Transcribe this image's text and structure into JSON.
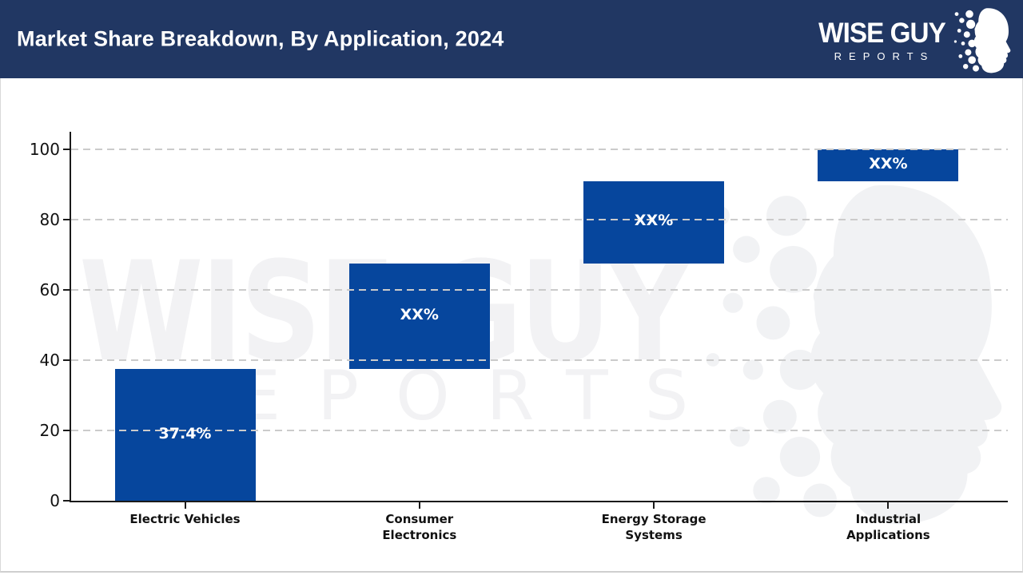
{
  "header": {
    "title": "Market Share Breakdown, By Application, 2024",
    "bg_color": "#213763",
    "logo": {
      "line1": "WISE GUY",
      "line2": "REPORTS"
    }
  },
  "watermark": {
    "line1": "WISE GUY",
    "line2": "REPORTS"
  },
  "colors": {
    "bar": "#06469d",
    "header_bg": "#213763",
    "axis": "#1a1a1a",
    "gridline": "#cbcbcb",
    "watermark": "#f2f2f4",
    "bar_label_text": "#ffffff"
  },
  "chart_data": {
    "type": "bar",
    "subtype": "floating-segment (waterfall-style market share)",
    "title": "Market Share Breakdown, By Application, 2024",
    "categories": [
      [
        "Electric Vehicles"
      ],
      [
        "Consumer",
        "Electronics"
      ],
      [
        "Energy Storage",
        "Systems"
      ],
      [
        "Industrial",
        "Applications"
      ]
    ],
    "series": [
      {
        "name": "Market share segment (from, to)",
        "ranges": [
          [
            0,
            37.4
          ],
          [
            37.4,
            67.5
          ],
          [
            67.5,
            91
          ],
          [
            91,
            100
          ]
        ]
      }
    ],
    "bar_labels": [
      "37.4%",
      "XX%",
      "XX%",
      "XX%"
    ],
    "xlabel": "",
    "ylabel": "",
    "ylim": [
      0,
      100
    ],
    "yticks": [
      0,
      20,
      40,
      60,
      80,
      100
    ],
    "grid": "horizontal dashed, drawn over bars",
    "legend": "none"
  }
}
